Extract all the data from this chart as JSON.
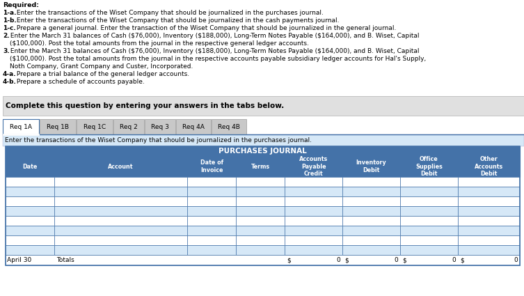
{
  "required_lines": [
    [
      "Required:",
      "",
      true
    ],
    [
      "1-a.",
      " Enter the transactions of the Wiset Company that should be journalized in the purchases journal.",
      true
    ],
    [
      "1-b.",
      " Enter the transactions of the Wiset Company that should be journalized in the cash payments journal.",
      true
    ],
    [
      "1-c.",
      " Prepare a general journal. Enter the transaction of the Wiset Company that should be journalized in the general journal.",
      true
    ],
    [
      "2.",
      " Enter the March 31 balances of Cash ($76,000), Inventory ($188,000), Long-Term Notes Payable ($164,000), and B. Wiset, Capital",
      true
    ],
    [
      "",
      "($100,000). Post the total amounts from the journal in the respective general ledger accounts.",
      false
    ],
    [
      "3.",
      " Enter the March 31 balances of Cash ($76,000), Inventory ($188,000), Long-Term Notes Payable ($164,000), and B. Wiset, Capital",
      true
    ],
    [
      "",
      "($100,000). Post the total amounts from the journal in the respective accounts payable subsidiary ledger accounts for Hal's Supply,",
      false
    ],
    [
      "",
      "Noth Company, Grant Company and Custer, Incorporated.",
      false
    ],
    [
      "4-a.",
      " Prepare a trial balance of the general ledger accounts.",
      true
    ],
    [
      "4-b.",
      " Prepare a schedule of accounts payable.",
      true
    ]
  ],
  "complete_text": "Complete this question by entering your answers in the tabs below.",
  "tabs": [
    "Req 1A",
    "Req 1B",
    "Req 1C",
    "Req 2",
    "Req 3",
    "Req 4A",
    "Req 4B"
  ],
  "instruction_text": "Enter the transactions of the Wiset Company that should be journalized in the purchases journal.",
  "journal_title": "PURCHASES JOURNAL",
  "col_headers": [
    "Date",
    "Account",
    "Date of\nInvoice",
    "Terms",
    "Accounts\nPayable\nCredit",
    "Inventory\nDebit",
    "Office\nSupplies\nDebit",
    "Other\nAccounts\nDebit"
  ],
  "num_data_rows": 8,
  "totals_label_date": "April 30",
  "totals_label": "Totals",
  "header_bg": "#4472a8",
  "complete_bg": "#e0e0e0",
  "instruction_bg": "#d6e8f7",
  "row_white": "#ffffff",
  "row_blue": "#d6e8f7",
  "grid_color": "#4472a8",
  "tab_active_bg": "#ffffff",
  "tab_inactive_bg": "#c8c8c8",
  "tab_border_color": "#4472a8",
  "tab_line_color": "#4472a8"
}
